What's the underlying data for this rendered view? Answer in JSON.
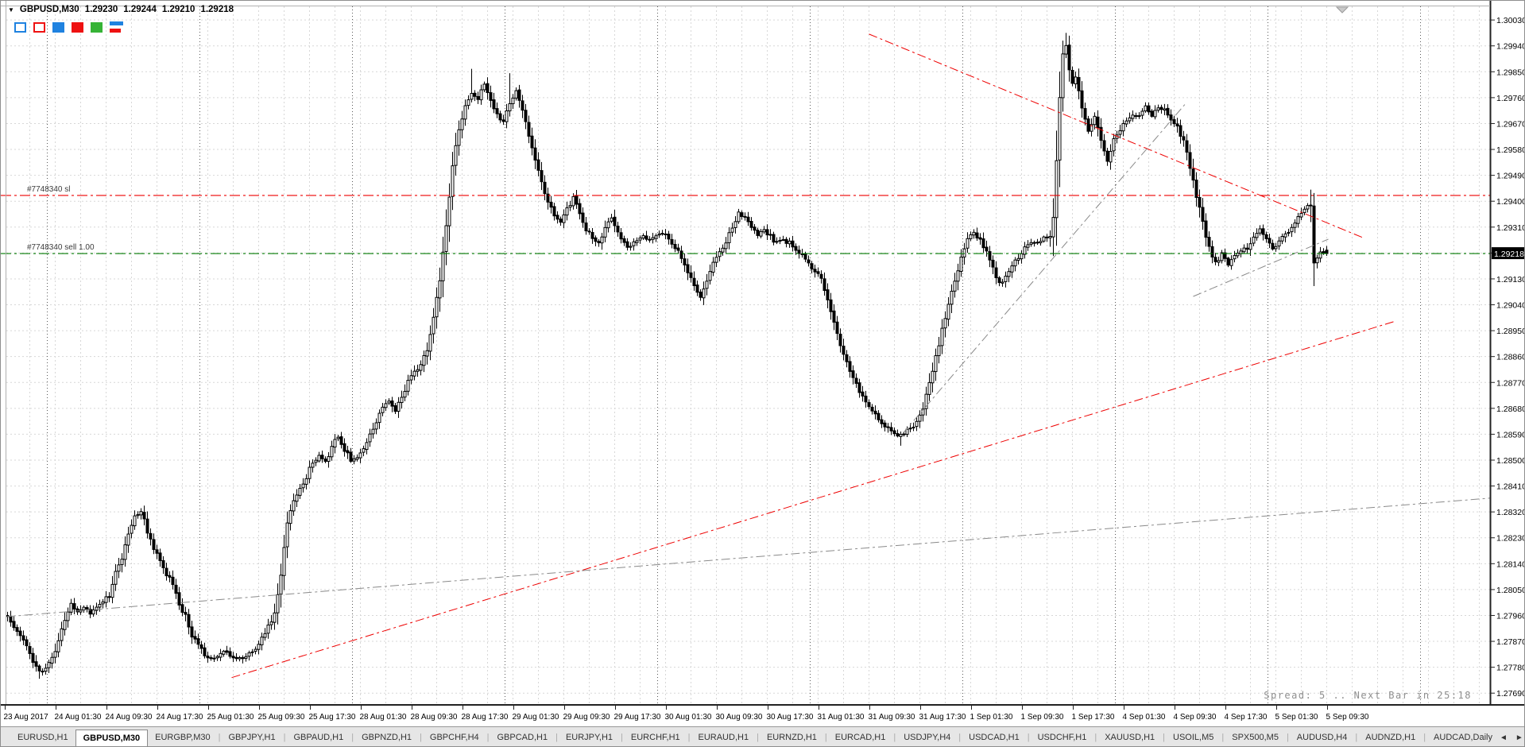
{
  "title": {
    "symbol": "GBPUSD,M30",
    "open": "1.29230",
    "high": "1.29244",
    "low": "1.29210",
    "close": "1.29218",
    "menu_triangle": "▼"
  },
  "toolbar_objects": [
    {
      "name": "rect-outline-blue",
      "fill": "#ffffff",
      "stroke": "#1f82e0"
    },
    {
      "name": "rect-outline-red",
      "fill": "#ffffff",
      "stroke": "#ee1111"
    },
    {
      "name": "rect-filled-blue",
      "fill": "#1f82e0",
      "stroke": "#1f82e0"
    },
    {
      "name": "rect-filled-red",
      "fill": "#ee1111",
      "stroke": "#ee1111"
    },
    {
      "name": "rect-filled-green",
      "fill": "#36b336",
      "stroke": "#36b336"
    },
    {
      "name": "bars-blue-red",
      "top_color": "#1f82e0",
      "bottom_color": "#ee1111"
    }
  ],
  "status": {
    "spread_text": "Spread: 5 .. Next Bar in 25:18"
  },
  "current_price": "1.29218",
  "tab_bar": {
    "left_arrow": "◄",
    "right_arrow": "►",
    "separator": "|",
    "tabs": [
      {
        "label": "EURUSD,H1",
        "active": false
      },
      {
        "label": "GBPUSD,M30",
        "active": true
      },
      {
        "label": "EURGBP,M30",
        "active": false
      },
      {
        "label": "GBPJPY,H1",
        "active": false
      },
      {
        "label": "GBPAUD,H1",
        "active": false
      },
      {
        "label": "GBPNZD,H1",
        "active": false
      },
      {
        "label": "GBPCHF,H4",
        "active": false
      },
      {
        "label": "GBPCAD,H1",
        "active": false
      },
      {
        "label": "EURJPY,H1",
        "active": false
      },
      {
        "label": "EURCHF,H1",
        "active": false
      },
      {
        "label": "EURAUD,H1",
        "active": false
      },
      {
        "label": "EURNZD,H1",
        "active": false
      },
      {
        "label": "EURCAD,H1",
        "active": false
      },
      {
        "label": "USDJPY,H4",
        "active": false
      },
      {
        "label": "USDCAD,H1",
        "active": false
      },
      {
        "label": "USDCHF,H1",
        "active": false
      },
      {
        "label": "XAUUSD,H1",
        "active": false
      },
      {
        "label": "USOIL,M5",
        "active": false
      },
      {
        "label": "SPX500,M5",
        "active": false
      },
      {
        "label": "AUDUSD,H4",
        "active": false
      },
      {
        "label": "AUDNZD,H1",
        "active": false
      },
      {
        "label": "AUDCAD,Daily",
        "active": false
      }
    ]
  },
  "chart_data": {
    "type": "candlestick",
    "symbol": "GBPUSD",
    "timeframe": "M30",
    "bar_count": 416,
    "grid": true,
    "price_axis_ticks": [
      "1.30030",
      "1.29940",
      "1.29850",
      "1.29760",
      "1.29670",
      "1.29580",
      "1.29490",
      "1.29400",
      "1.29310",
      "1.29220",
      "1.29130",
      "1.29040",
      "1.28950",
      "1.28860",
      "1.28770",
      "1.28680",
      "1.28590",
      "1.28500",
      "1.28410",
      "1.28320",
      "1.28230",
      "1.28140",
      "1.28050",
      "1.27960",
      "1.27870",
      "1.27780",
      "1.27690"
    ],
    "time_axis_labels": [
      "23 Aug 2017",
      "24 Aug 01:30",
      "24 Aug 09:30",
      "24 Aug 17:30",
      "25 Aug 01:30",
      "25 Aug 09:30",
      "25 Aug 17:30",
      "28 Aug 01:30",
      "28 Aug 09:30",
      "28 Aug 17:30",
      "29 Aug 01:30",
      "29 Aug 09:30",
      "29 Aug 17:30",
      "30 Aug 01:30",
      "30 Aug 09:30",
      "30 Aug 17:30",
      "31 Aug 01:30",
      "31 Aug 09:30",
      "31 Aug 17:30",
      "1 Sep 01:30",
      "1 Sep 09:30",
      "1 Sep 17:30",
      "4 Sep 01:30",
      "4 Sep 09:30",
      "4 Sep 17:30",
      "5 Sep 01:30",
      "5 Sep 09:30"
    ],
    "period_separator_days": [
      "24 Aug",
      "25 Aug",
      "28 Aug",
      "29 Aug",
      "30 Aug",
      "31 Aug",
      "1 Sep",
      "4 Sep",
      "5 Sep",
      "6 Sep"
    ],
    "orders": [
      {
        "label": "#7748340 sl",
        "price": 1.2942,
        "color": "#ee0000"
      },
      {
        "label": "#7748340 sell 1.00",
        "price": 1.29218,
        "color": "#007a00"
      }
    ],
    "trendlines": [
      {
        "name": "downtrend-from-1sep-high",
        "color": "#ee0000",
        "bars": [
          271,
          426.25
        ],
        "prices": [
          1.29981,
          1.29274
        ]
      },
      {
        "name": "major-uptrend",
        "color": "#ee0000",
        "bars": [
          70.5,
          436
        ],
        "prices": [
          1.27744,
          1.28981
        ]
      },
      {
        "name": "shallow-uptrend",
        "color": "#8a8a8a",
        "bars": [
          -0.25,
          466.5
        ],
        "prices": [
          1.27956,
          1.28368
        ]
      },
      {
        "name": "steep-uptrend",
        "color": "#8a8a8a",
        "bars": [
          281.5,
          370.5
        ],
        "prices": [
          1.28591,
          1.29738
        ]
      },
      {
        "name": "minor-support",
        "color": "#8a8a8a",
        "bars": [
          373,
          415.5
        ],
        "prices": [
          1.29069,
          1.29268
        ]
      }
    ],
    "waypoints": [
      [
        0,
        1.27956
      ],
      [
        3,
        1.27909
      ],
      [
        6,
        1.27854
      ],
      [
        8,
        1.27804
      ],
      [
        10,
        1.27763
      ],
      [
        12,
        1.27782
      ],
      [
        14,
        1.2781
      ],
      [
        16,
        1.27873
      ],
      [
        18,
        1.27948
      ],
      [
        20,
        1.28003
      ],
      [
        22,
        1.27975
      ],
      [
        24,
        1.27992
      ],
      [
        26,
        1.2797
      ],
      [
        28,
        1.27981
      ],
      [
        30,
        1.28003
      ],
      [
        32,
        1.28031
      ],
      [
        34,
        1.28108
      ],
      [
        36,
        1.28163
      ],
      [
        38,
        1.28241
      ],
      [
        40,
        1.28301
      ],
      [
        42,
        1.28323
      ],
      [
        44,
        1.28252
      ],
      [
        46,
        1.28191
      ],
      [
        48,
        1.28149
      ],
      [
        50,
        1.28103
      ],
      [
        52,
        1.28067
      ],
      [
        54,
        1.27998
      ],
      [
        56,
        1.27956
      ],
      [
        58,
        1.27887
      ],
      [
        60,
        1.27854
      ],
      [
        62,
        1.27826
      ],
      [
        64,
        1.2781
      ],
      [
        66,
        1.27818
      ],
      [
        68,
        1.27837
      ],
      [
        70,
        1.27821
      ],
      [
        72,
        1.27804
      ],
      [
        74,
        1.27815
      ],
      [
        76,
        1.27832
      ],
      [
        78,
        1.27846
      ],
      [
        80,
        1.27887
      ],
      [
        82,
        1.2792
      ],
      [
        84,
        1.2797
      ],
      [
        86,
        1.28108
      ],
      [
        88,
        1.28288
      ],
      [
        90,
        1.28357
      ],
      [
        92,
        1.28406
      ],
      [
        94,
        1.2844
      ],
      [
        96,
        1.28495
      ],
      [
        98,
        1.28517
      ],
      [
        100,
        1.28489
      ],
      [
        102,
        1.28545
      ],
      [
        104,
        1.28583
      ],
      [
        106,
        1.28536
      ],
      [
        108,
        1.285
      ],
      [
        110,
        1.28517
      ],
      [
        112,
        1.28545
      ],
      [
        114,
        1.28583
      ],
      [
        116,
        1.28638
      ],
      [
        118,
        1.28683
      ],
      [
        120,
        1.28702
      ],
      [
        122,
        1.28666
      ],
      [
        124,
        1.28721
      ],
      [
        126,
        1.28771
      ],
      [
        128,
        1.28804
      ],
      [
        130,
        1.2884
      ],
      [
        132,
        1.28887
      ],
      [
        134,
        1.28992
      ],
      [
        136,
        1.2913
      ],
      [
        138,
        1.29323
      ],
      [
        140,
        1.29517
      ],
      [
        142,
        1.29655
      ],
      [
        144,
        1.29732
      ],
      [
        146,
        1.29771
      ],
      [
        148,
        1.2976
      ],
      [
        150,
        1.29799
      ],
      [
        152,
        1.29743
      ],
      [
        154,
        1.29696
      ],
      [
        156,
        1.29677
      ],
      [
        158,
        1.29743
      ],
      [
        160,
        1.29776
      ],
      [
        162,
        1.29716
      ],
      [
        164,
        1.29633
      ],
      [
        166,
        1.29544
      ],
      [
        168,
        1.29467
      ],
      [
        170,
        1.29401
      ],
      [
        172,
        1.29346
      ],
      [
        174,
        1.29329
      ],
      [
        176,
        1.29373
      ],
      [
        178,
        1.29412
      ],
      [
        180,
        1.29357
      ],
      [
        182,
        1.29301
      ],
      [
        184,
        1.29274
      ],
      [
        186,
        1.29254
      ],
      [
        188,
        1.29301
      ],
      [
        190,
        1.29346
      ],
      [
        192,
        1.2929
      ],
      [
        194,
        1.29252
      ],
      [
        196,
        1.29235
      ],
      [
        198,
        1.29268
      ],
      [
        200,
        1.29282
      ],
      [
        202,
        1.29263
      ],
      [
        204,
        1.29279
      ],
      [
        206,
        1.2929
      ],
      [
        208,
        1.29268
      ],
      [
        210,
        1.29241
      ],
      [
        212,
        1.29207
      ],
      [
        214,
        1.29158
      ],
      [
        216,
        1.29103
      ],
      [
        218,
        1.29061
      ],
      [
        220,
        1.2913
      ],
      [
        222,
        1.2918
      ],
      [
        224,
        1.29219
      ],
      [
        226,
        1.29263
      ],
      [
        228,
        1.2931
      ],
      [
        230,
        1.29357
      ],
      [
        232,
        1.29346
      ],
      [
        234,
        1.29301
      ],
      [
        236,
        1.29282
      ],
      [
        238,
        1.29301
      ],
      [
        240,
        1.29279
      ],
      [
        242,
        1.29252
      ],
      [
        244,
        1.29268
      ],
      [
        246,
        1.29254
      ],
      [
        248,
        1.29235
      ],
      [
        250,
        1.29207
      ],
      [
        252,
        1.29185
      ],
      [
        254,
        1.29158
      ],
      [
        256,
        1.29125
      ],
      [
        258,
        1.29061
      ],
      [
        260,
        1.28978
      ],
      [
        262,
        1.28904
      ],
      [
        264,
        1.2884
      ],
      [
        266,
        1.28793
      ],
      [
        268,
        1.28738
      ],
      [
        270,
        1.28702
      ],
      [
        272,
        1.28674
      ],
      [
        274,
        1.28647
      ],
      [
        276,
        1.28619
      ],
      [
        278,
        1.286
      ],
      [
        280,
        1.28583
      ],
      [
        282,
        1.28591
      ],
      [
        284,
        1.28611
      ],
      [
        286,
        1.28633
      ],
      [
        288,
        1.28683
      ],
      [
        290,
        1.28771
      ],
      [
        292,
        1.28859
      ],
      [
        294,
        1.28951
      ],
      [
        296,
        1.29042
      ],
      [
        298,
        1.29125
      ],
      [
        300,
        1.29207
      ],
      [
        302,
        1.29268
      ],
      [
        304,
        1.2929
      ],
      [
        306,
        1.29263
      ],
      [
        308,
        1.29219
      ],
      [
        310,
        1.29163
      ],
      [
        312,
        1.29114
      ],
      [
        314,
        1.29136
      ],
      [
        316,
        1.29174
      ],
      [
        318,
        1.29207
      ],
      [
        320,
        1.29235
      ],
      [
        322,
        1.29252
      ],
      [
        324,
        1.29263
      ],
      [
        326,
        1.29268
      ],
      [
        328,
        1.29279
      ],
      [
        329,
        1.29351
      ],
      [
        330,
        1.29544
      ],
      [
        331,
        1.29765
      ],
      [
        332,
        1.29904
      ],
      [
        333,
        1.29937
      ],
      [
        334,
        1.29862
      ],
      [
        335,
        1.29807
      ],
      [
        336,
        1.29835
      ],
      [
        337,
        1.29779
      ],
      [
        338,
        1.29724
      ],
      [
        339,
        1.29683
      ],
      [
        340,
        1.2965
      ],
      [
        341,
        1.29669
      ],
      [
        342,
        1.29688
      ],
      [
        343,
        1.2965
      ],
      [
        344,
        1.29605
      ],
      [
        345,
        1.29567
      ],
      [
        346,
        1.29544
      ],
      [
        347,
        1.29578
      ],
      [
        348,
        1.29611
      ],
      [
        350,
        1.2965
      ],
      [
        352,
        1.29683
      ],
      [
        354,
        1.29705
      ],
      [
        356,
        1.29705
      ],
      [
        358,
        1.29732
      ],
      [
        360,
        1.29699
      ],
      [
        362,
        1.29727
      ],
      [
        364,
        1.29721
      ],
      [
        366,
        1.29688
      ],
      [
        368,
        1.2966
      ],
      [
        370,
        1.29605
      ],
      [
        372,
        1.29522
      ],
      [
        374,
        1.2942
      ],
      [
        376,
        1.29323
      ],
      [
        378,
        1.29235
      ],
      [
        380,
        1.29185
      ],
      [
        382,
        1.29213
      ],
      [
        384,
        1.29174
      ],
      [
        386,
        1.29219
      ],
      [
        388,
        1.29227
      ],
      [
        390,
        1.29235
      ],
      [
        392,
        1.29279
      ],
      [
        394,
        1.29301
      ],
      [
        396,
        1.29263
      ],
      [
        398,
        1.29235
      ],
      [
        400,
        1.29263
      ],
      [
        402,
        1.29285
      ],
      [
        404,
        1.2931
      ],
      [
        406,
        1.2934
      ],
      [
        408,
        1.29373
      ],
      [
        410,
        1.29384
      ],
      [
        411,
        1.29185
      ],
      [
        412,
        1.29199
      ],
      [
        413,
        1.29219
      ],
      [
        414,
        1.29227
      ],
      [
        415,
        1.29219
      ]
    ],
    "anchors": {
      "0": {
        "open": 1.2796
      },
      "10": {
        "low": 1.2774
      },
      "146": {
        "high": 1.2986
      },
      "158": {
        "high": 1.29845
      },
      "281": {
        "low": 1.2855
      },
      "333": {
        "high": 1.29985
      },
      "411": {
        "low": 1.29105
      },
      "415": {
        "open": 1.2923,
        "high": 1.29244,
        "low": 1.2921,
        "close": 1.29218
      }
    }
  }
}
